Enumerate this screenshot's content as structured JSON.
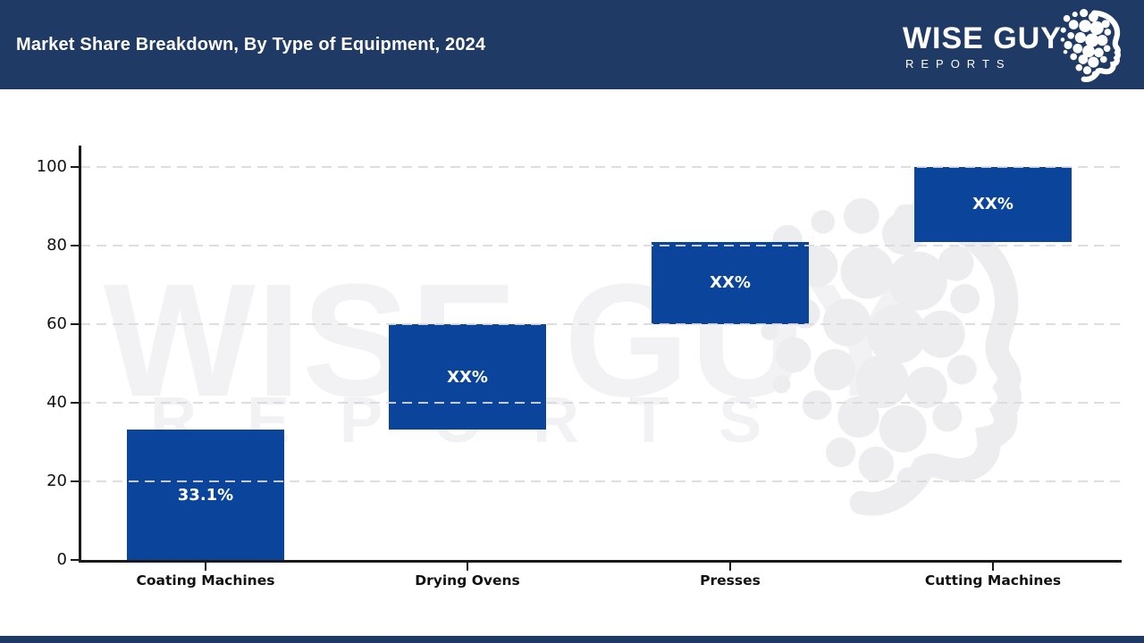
{
  "header": {
    "title": "Market Share Breakdown, By Type of Equipment, 2024",
    "logo": {
      "line1": "WISE GUY",
      "line2": "REPORTS"
    }
  },
  "watermark": {
    "line1": "WISE GUY",
    "line2": "REPORTS"
  },
  "footer": {},
  "chart_data": {
    "type": "bar",
    "subtype": "waterfall",
    "title": "Market Share Breakdown, By Type of Equipment, 2024",
    "categories": [
      "Coating Machines",
      "Drying Ovens",
      "Presses",
      "Cutting Machines"
    ],
    "segments": [
      {
        "category": "Coating Machines",
        "start": 0,
        "end": 33.1,
        "value": 33.1,
        "label": "33.1%"
      },
      {
        "category": "Drying Ovens",
        "start": 33.1,
        "end": 60,
        "value": 26.9,
        "label": "XX%"
      },
      {
        "category": "Presses",
        "start": 60,
        "end": 81,
        "value": 21,
        "label": "XX%"
      },
      {
        "category": "Cutting Machines",
        "start": 81,
        "end": 100,
        "value": 19,
        "label": "XX%"
      }
    ],
    "xlabel": "",
    "ylabel": "",
    "y_ticks": [
      0,
      20,
      40,
      60,
      80,
      100
    ],
    "ylim": [
      0,
      100
    ],
    "grid": "horizontal dashed, drawn over bars",
    "legend": "none",
    "bar_color": "#0b449b",
    "bar_label_color": "#ffffff",
    "axis_color": "#1a1a1a",
    "gridline_color": "#dadadc"
  },
  "colors": {
    "header_bg": "#1f3a64",
    "footer_bg": "#1f3a64",
    "page_bg": "#ffffff",
    "watermark": "#f2f2f4"
  }
}
